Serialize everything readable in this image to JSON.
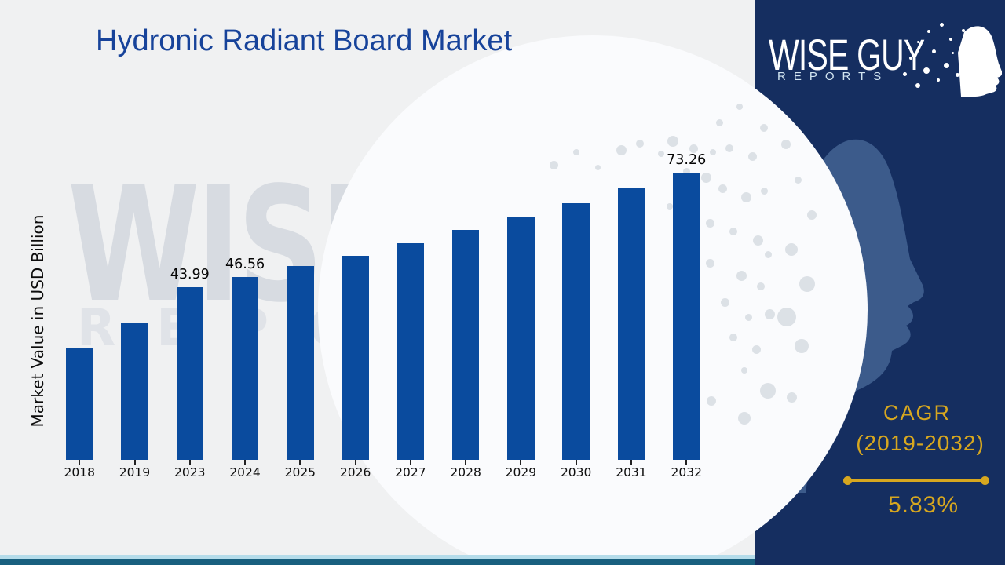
{
  "title": "Hydronic Radiant Board Market",
  "y_axis_label": "Market Value in USD Billion",
  "watermark": {
    "line1": "WISE GUY",
    "line2": "REPORTS"
  },
  "logo": {
    "line1": "WISE GUY",
    "line2": "REPORTS"
  },
  "cagr": {
    "heading": "CAGR",
    "range": "(2019-2032)",
    "value": "5.83%"
  },
  "colors": {
    "background": "#f0f1f2",
    "bar": "#0a4b9e",
    "title_blue": "#17439a",
    "panel_navy": "#152e60",
    "gold": "#d7a71f",
    "teal_strip": "#19607f",
    "light_strip": "#b5dcea"
  },
  "chart_data": {
    "type": "bar",
    "title": "Hydronic Radiant Board Market",
    "xlabel": "",
    "ylabel": "Market Value in USD Billion",
    "categories": [
      "2018",
      "2019",
      "2023",
      "2024",
      "2025",
      "2026",
      "2027",
      "2028",
      "2029",
      "2030",
      "2031",
      "2032"
    ],
    "values": [
      28.7,
      35.0,
      43.99,
      46.56,
      49.4,
      52.0,
      55.3,
      58.6,
      61.9,
      65.5,
      69.3,
      73.26
    ],
    "bar_labels": [
      "",
      "",
      "43.99",
      "46.56",
      "",
      "",
      "",
      "",
      "",
      "",
      "",
      "73.26"
    ],
    "ylim": [
      0,
      80
    ],
    "grid": false,
    "legend": null,
    "cagr_annotation": {
      "label": "CAGR (2019-2032)",
      "value_pct": 5.83
    }
  }
}
